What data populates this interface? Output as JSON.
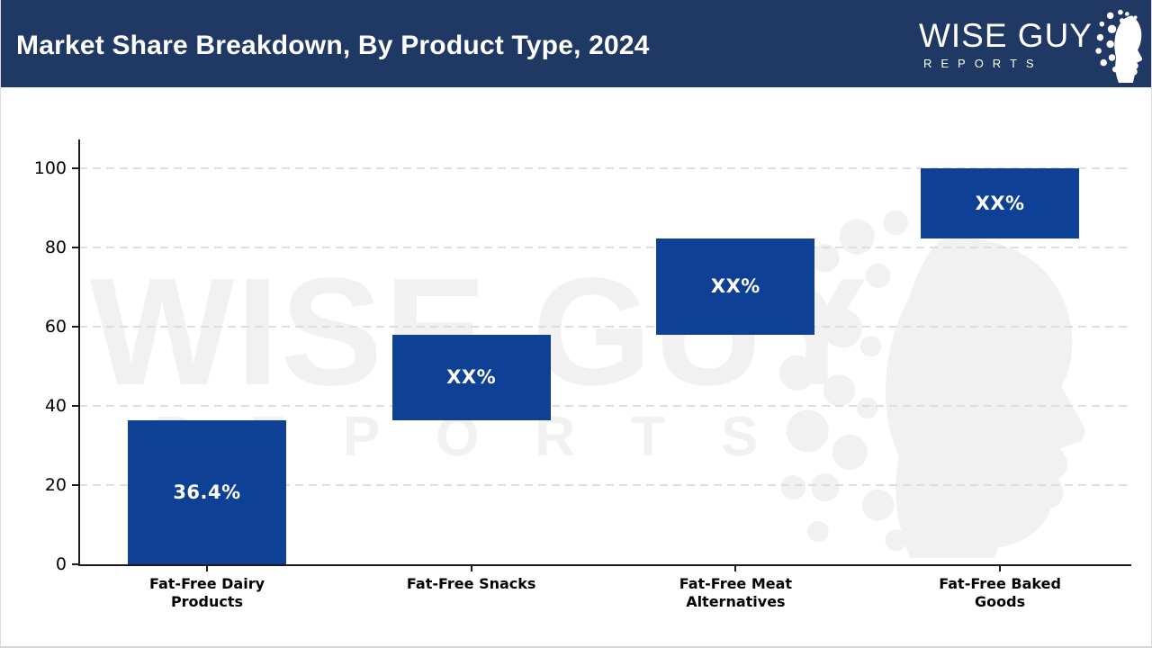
{
  "header": {
    "title": "Market Share Breakdown, By Product Type, 2024",
    "logo": {
      "wordmark": "WISE GUY",
      "subtext": "REPORTS"
    }
  },
  "watermark": {
    "wordmark": "WISE GUY",
    "subtext": "REPORTS"
  },
  "colors": {
    "header_bg": "#1F3864",
    "bar": "#0E4095",
    "bar_label": "#FFFFFF",
    "grid": "#DEDEDE",
    "axis": "#1A1A1A",
    "tick_label": "#000000",
    "watermark": "#F1F1F2"
  },
  "chart_data": {
    "type": "bar",
    "variant": "waterfall",
    "title": "Market Share Breakdown, By Product Type, 2024",
    "categories": [
      "Fat-Free Dairy Products",
      "Fat-Free Snacks",
      "Fat-Free Meat Alternatives",
      "Fat-Free Baked Goods"
    ],
    "category_lines": [
      [
        "Fat-Free Dairy",
        "Products"
      ],
      [
        "Fat-Free Snacks"
      ],
      [
        "Fat-Free Meat",
        "Alternatives"
      ],
      [
        "Fat-Free Baked",
        "Goods"
      ]
    ],
    "segments": [
      {
        "category": "Fat-Free Dairy Products",
        "start": 0,
        "end": 36.4,
        "label": "36.4%"
      },
      {
        "category": "Fat-Free Snacks",
        "start": 36.4,
        "end": 58,
        "label": "XX%"
      },
      {
        "category": "Fat-Free Meat Alternatives",
        "start": 58,
        "end": 82.3,
        "label": "XX%"
      },
      {
        "category": "Fat-Free Baked Goods",
        "start": 82.3,
        "end": 100,
        "label": "XX%"
      }
    ],
    "xlabel": "",
    "ylabel": "",
    "ylim": [
      0,
      100
    ],
    "yticks": [
      0,
      20,
      40,
      60,
      80,
      100
    ],
    "grid": "horizontal-dashed",
    "legend": "none"
  }
}
